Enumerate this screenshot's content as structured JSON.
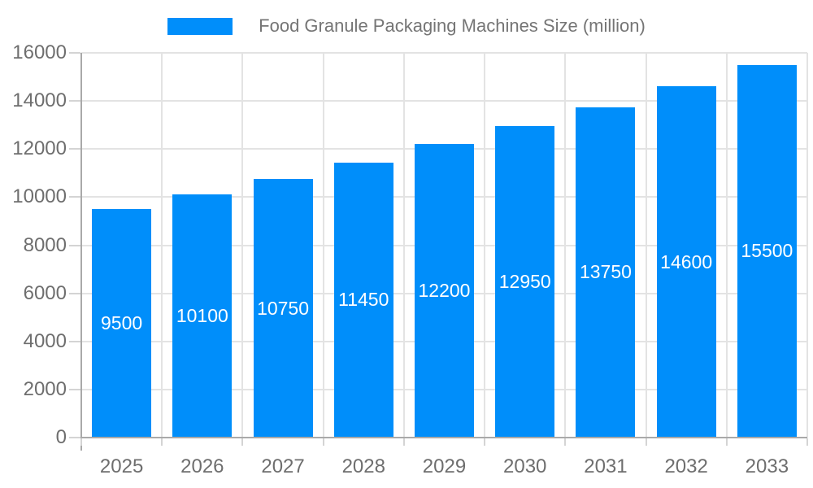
{
  "chart_data": {
    "type": "bar",
    "title": "Food Granule Packaging Machines Size (million)",
    "xlabel": "",
    "ylabel": "",
    "categories": [
      "2025",
      "2026",
      "2027",
      "2028",
      "2029",
      "2030",
      "2031",
      "2032",
      "2033"
    ],
    "values": [
      9500,
      10100,
      10750,
      11450,
      12200,
      12950,
      13750,
      14600,
      15500
    ],
    "ylim": [
      0,
      16000
    ],
    "yticks": [
      0,
      2000,
      4000,
      6000,
      8000,
      10000,
      12000,
      14000,
      16000
    ],
    "grid": true,
    "legend_position": "top",
    "data_labels_position": "middle-of-bar",
    "colors": {
      "bar": "#008EFA",
      "grid": "#e3e3e3",
      "axis": "#a9a9a9",
      "tick": "#d4d4d4",
      "axis_labels": "#6e6e6e",
      "legend_text": "#757575",
      "data_labels": "#ffffff"
    }
  }
}
